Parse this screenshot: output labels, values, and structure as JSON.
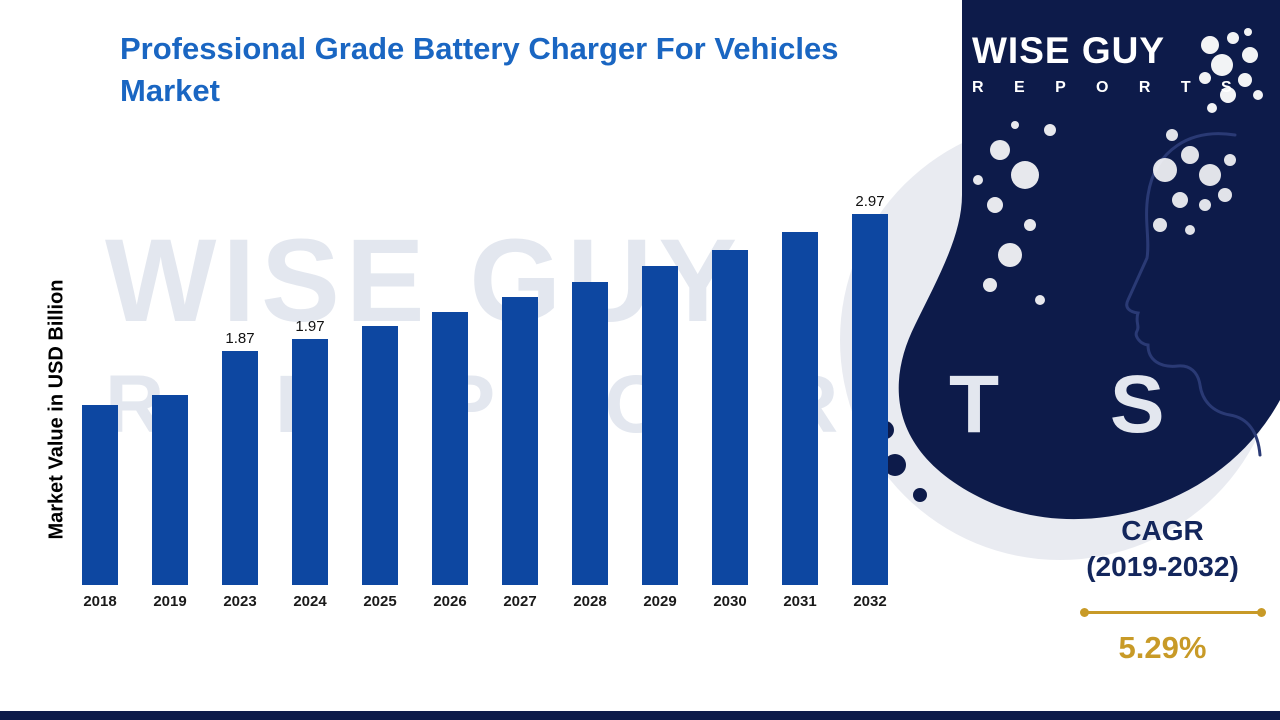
{
  "page": {
    "title": "Professional Grade Battery Charger For Vehicles Market"
  },
  "brand": {
    "name_line1": "WISE GUY",
    "name_line2": "R E P O R T S"
  },
  "watermark": {
    "line1": "WISE GUY",
    "line2": "R E P O R T S"
  },
  "cagr": {
    "label": "CAGR",
    "range": "(2019-2032)",
    "value": "5.29%"
  },
  "colors": {
    "bar": "#0d47a1",
    "title_text": "#1a66c2",
    "panel": "#0d1b4a",
    "gold": "#c89a27",
    "watermark": "#e3e7ef",
    "cagr_text": "#13265c"
  },
  "chart_data": {
    "type": "bar",
    "title": "Professional Grade Battery Charger For Vehicles Market",
    "xlabel": "",
    "ylabel": "Market Value in USD Billion",
    "categories": [
      "2018",
      "2019",
      "2023",
      "2024",
      "2025",
      "2026",
      "2027",
      "2028",
      "2029",
      "2030",
      "2031",
      "2032"
    ],
    "values": [
      1.44,
      1.52,
      1.87,
      1.97,
      2.07,
      2.18,
      2.3,
      2.42,
      2.55,
      2.68,
      2.82,
      2.97
    ],
    "data_labels": [
      "",
      "",
      "1.87",
      "1.97",
      "",
      "",
      "",
      "",
      "",
      "",
      "",
      "2.97"
    ],
    "ylim": [
      0,
      3.4
    ],
    "grid": false,
    "legend": false,
    "bar_color": "#0d47a1"
  }
}
